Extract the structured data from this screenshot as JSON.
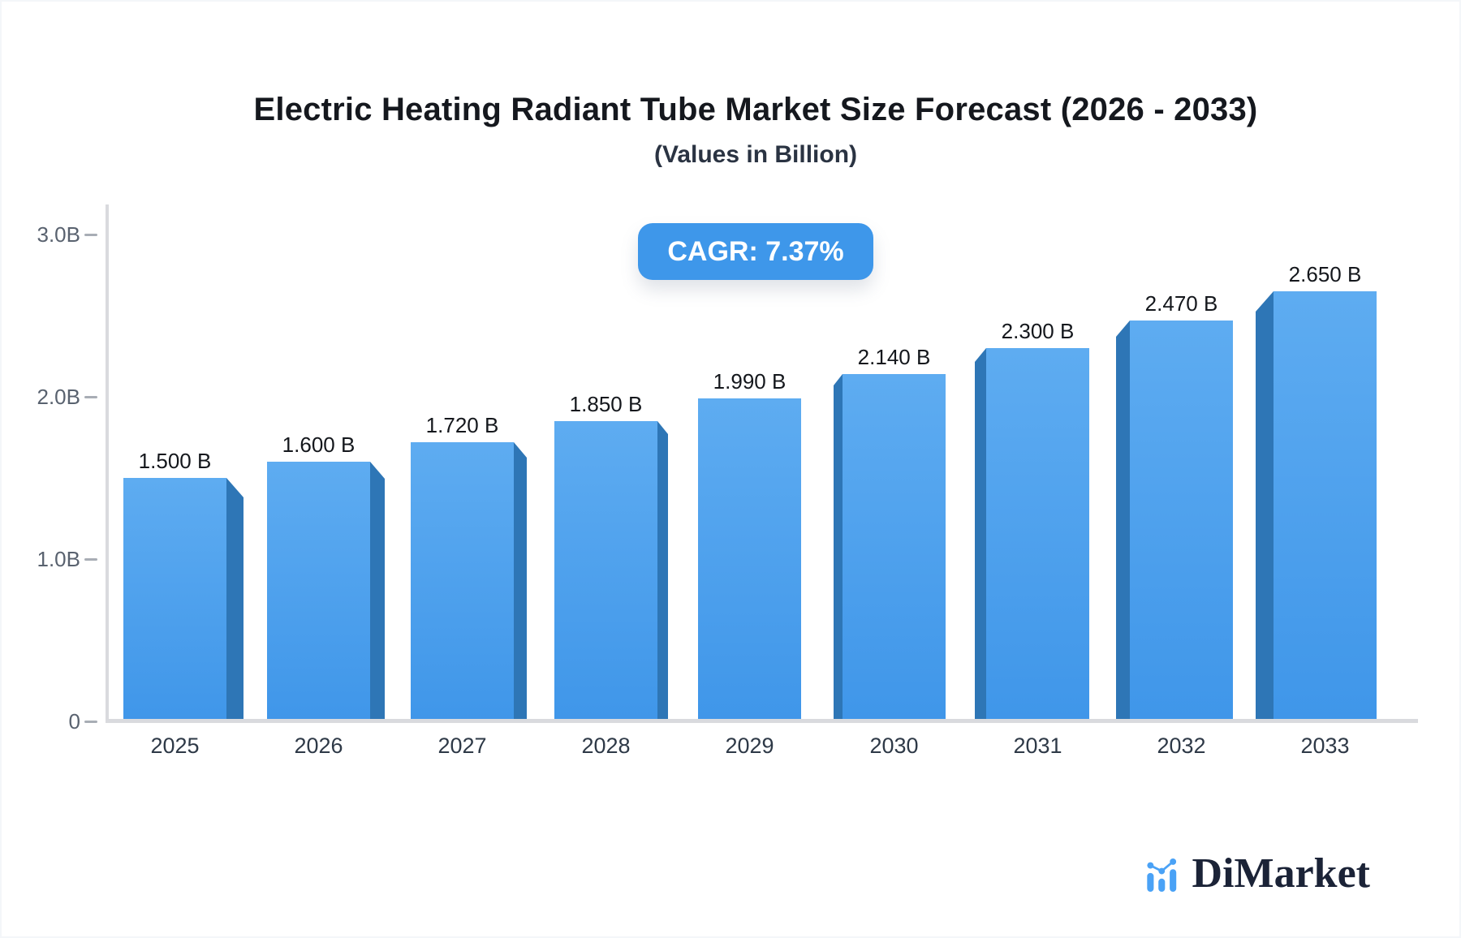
{
  "header": {
    "title": "Electric Heating Radiant Tube Market Size Forecast (2026 - 2033)",
    "subtitle": "(Values in Billion)"
  },
  "badge": {
    "label": "CAGR: 7.37%",
    "bg": "#3E97EA",
    "text_color": "#FFFFFF"
  },
  "chart_data": {
    "type": "bar",
    "title": "Electric Heating Radiant Tube Market Size Forecast (2026 - 2033)",
    "subtitle": "(Values in Billion)",
    "xlabel": "",
    "ylabel": "",
    "categories": [
      "2025",
      "2026",
      "2027",
      "2028",
      "2029",
      "2030",
      "2031",
      "2032",
      "2033"
    ],
    "values": [
      1.5,
      1.6,
      1.72,
      1.85,
      1.99,
      2.14,
      2.3,
      2.47,
      2.65
    ],
    "value_labels": [
      "1.500 B",
      "1.600 B",
      "1.720 B",
      "1.850 B",
      "1.990 B",
      "2.140 B",
      "2.300 B",
      "2.470 B",
      "2.650 B"
    ],
    "ylim": [
      0,
      3.0
    ],
    "yticks": [
      {
        "value": 0,
        "label": "0"
      },
      {
        "value": 1.0,
        "label": "1.0B"
      },
      {
        "value": 2.0,
        "label": "2.0B"
      },
      {
        "value": 3.0,
        "label": "3.0B"
      }
    ],
    "grid": "off",
    "legend": "none",
    "bar_style": "3d-extruded, perspective toward center (left bars extrude right, right bars extrude left, middle bar flat)",
    "colors": {
      "bar_face_top": "#5EACF1",
      "bar_face_bottom": "#3F96E9",
      "bar_side": "#2E76B6",
      "axis_line": "#D9DADE",
      "tick_dash": "#A8ADB5",
      "y_tick_text": "#59626F",
      "x_tick_text": "#2E3947",
      "value_label_text": "#14171C"
    }
  },
  "logo": {
    "text": "DiMarket",
    "text_color": "#1B2337",
    "icon": "bar-chart-with-dots-icon",
    "icon_color": "#4AA2F6"
  }
}
